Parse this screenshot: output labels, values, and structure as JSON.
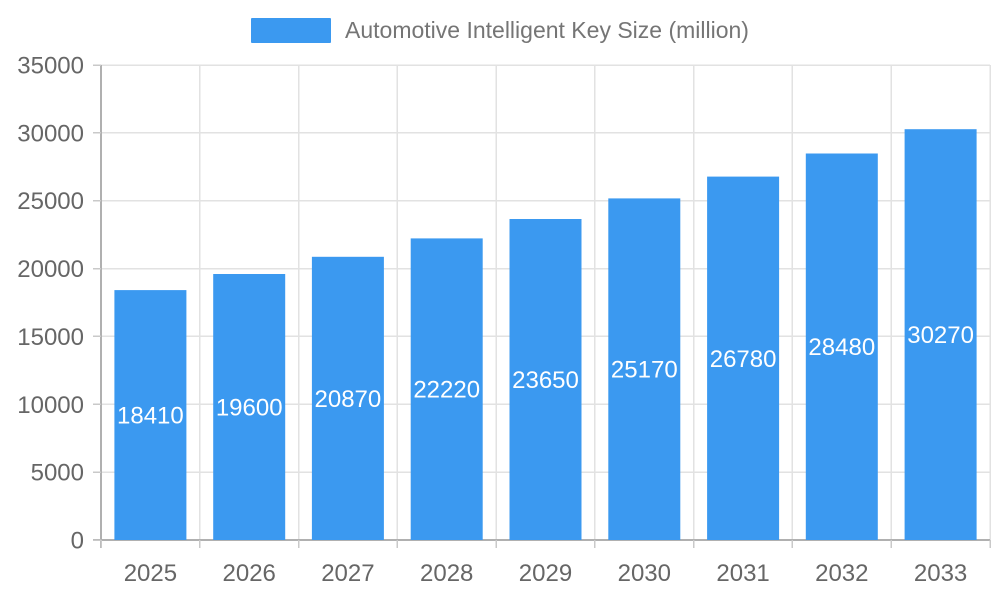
{
  "chart_data": {
    "type": "bar",
    "title": "",
    "legend": "Automotive Intelligent Key Size (million)",
    "legend_position": "top-center",
    "categories": [
      "2025",
      "2026",
      "2027",
      "2028",
      "2029",
      "2030",
      "2031",
      "2032",
      "2033"
    ],
    "series": [
      {
        "name": "Automotive Intelligent Key Size (million)",
        "values": [
          18410,
          19600,
          20870,
          22220,
          23650,
          25170,
          26780,
          28480,
          30270
        ]
      }
    ],
    "bar_labels_visible": true,
    "xlabel": "",
    "ylabel": "",
    "ylim": [
      0,
      35000
    ],
    "ytick_step": 5000,
    "yticks": [
      0,
      5000,
      10000,
      15000,
      20000,
      25000,
      30000,
      35000
    ],
    "grid": true,
    "colors": {
      "bar": "#3B99F0",
      "bar_label_text": "#FFFFFF",
      "axis_label_text": "#666666",
      "legend_text": "#757575",
      "grid_line": "#E2E2E2",
      "axis_line": "#B0B0B0",
      "tick_mark": "#C9C9C9",
      "background": "#FFFFFF"
    }
  }
}
